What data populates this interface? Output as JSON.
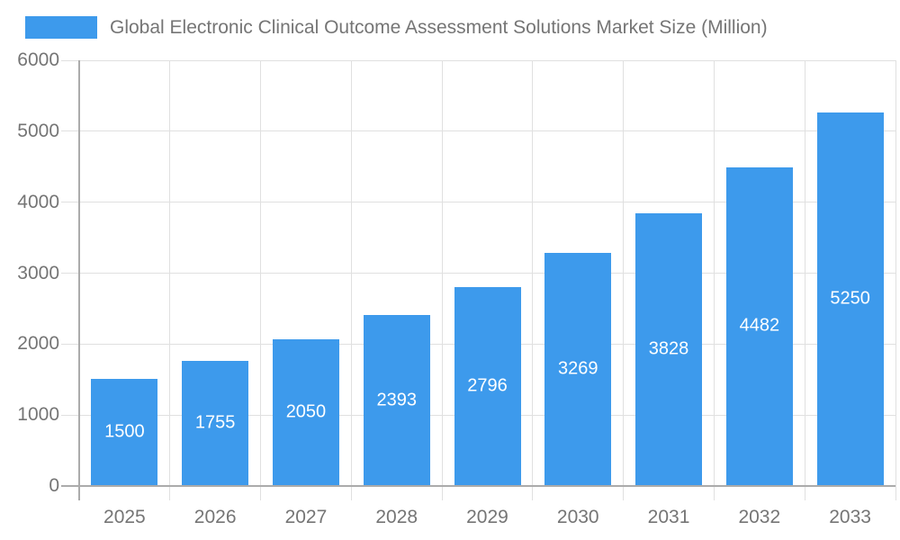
{
  "chart_data": {
    "type": "bar",
    "title": "Global Electronic Clinical Outcome Assessment Solutions Market Size (Million)",
    "categories": [
      "2025",
      "2026",
      "2027",
      "2028",
      "2029",
      "2030",
      "2031",
      "2032",
      "2033"
    ],
    "values": [
      1500,
      1755,
      2050,
      2393,
      2796,
      3269,
      3828,
      4482,
      5250
    ],
    "xlabel": "",
    "ylabel": "",
    "ylim": [
      0,
      6000
    ],
    "yticks": [
      0,
      1000,
      2000,
      3000,
      4000,
      5000,
      6000
    ],
    "grid": true,
    "legend_position": "top-left",
    "value_labels_position": "inside-center"
  },
  "colors": {
    "bar": "#3d9aec",
    "bar_value_text": "#ffffff",
    "axis_line": "#ababab",
    "gridline": "#e0e0e0",
    "tick_text": "#757575",
    "title_text": "#757575",
    "background": "#ffffff"
  }
}
